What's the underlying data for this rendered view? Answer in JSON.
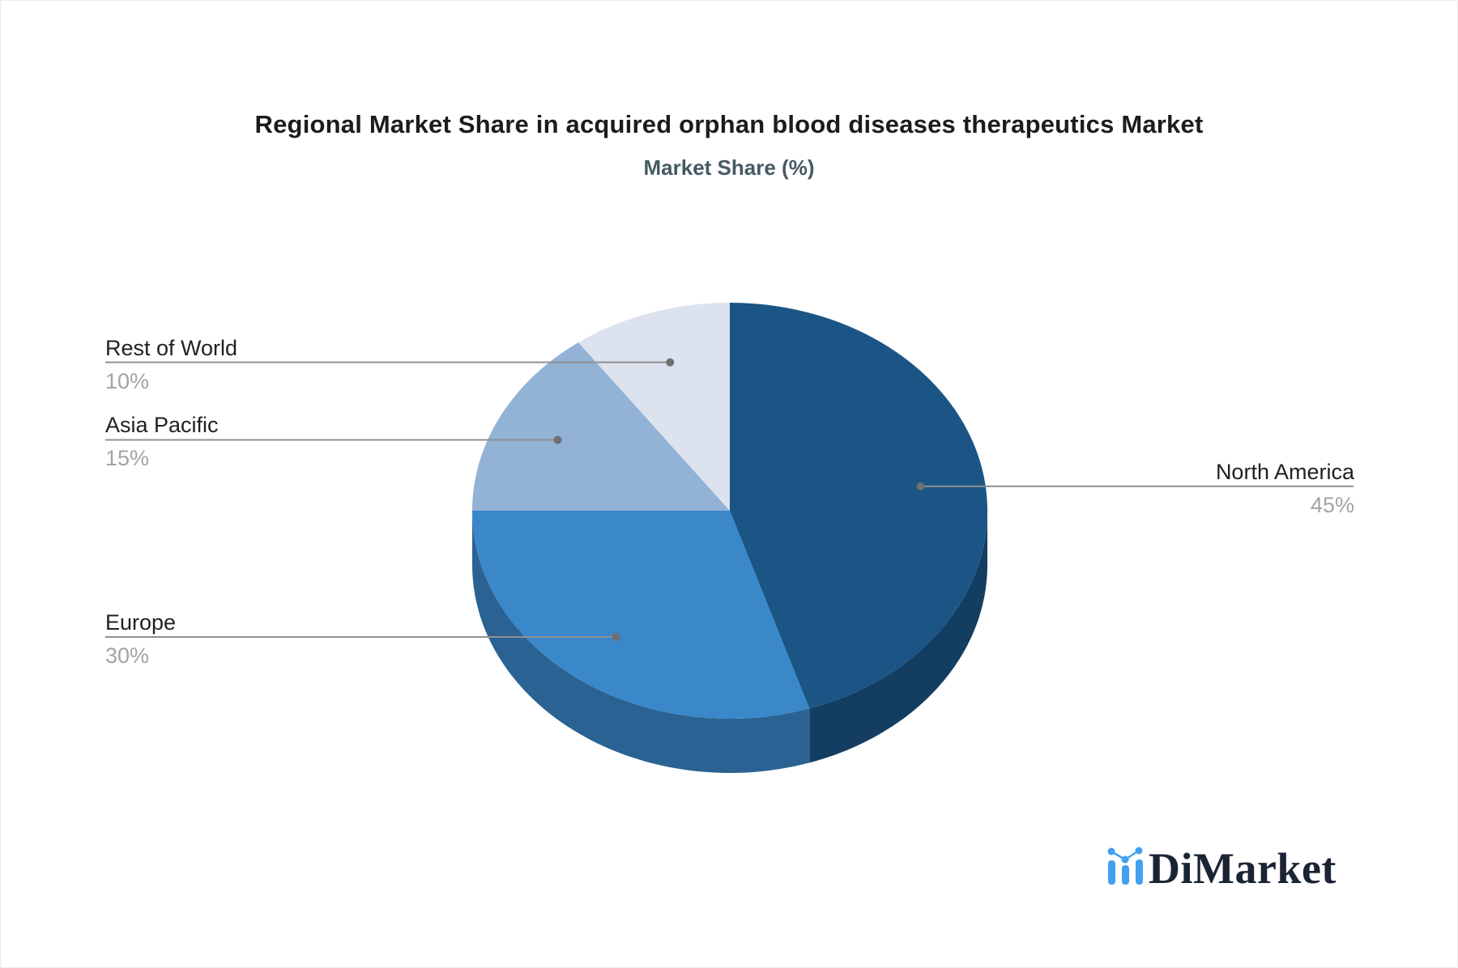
{
  "title": "Regional Market Share in acquired orphan blood diseases therapeutics Market",
  "subtitle": "Market Share (%)",
  "chart_data": {
    "type": "pie",
    "title": "Regional Market Share in acquired orphan blood diseases therapeutics Market",
    "subtitle": "Market Share (%)",
    "unit": "%",
    "direction": "clockwise",
    "start_angle_deg": 0,
    "effect": "3d-depth",
    "legend_position": "callout-labels",
    "categories": [
      "North America",
      "Europe",
      "Asia Pacific",
      "Rest of World"
    ],
    "values": [
      45,
      30,
      15,
      10
    ],
    "value_labels": [
      "45%",
      "30%",
      "15%",
      "10%"
    ],
    "colors": [
      "#1a5586",
      "#3a87c9",
      "#92b2d6",
      "#dce3ee"
    ],
    "leader_line_color": "#909090",
    "leader_dot_color": "#6f6f6f"
  },
  "watermark": {
    "brand": "DiMarket",
    "icon": "mini-bar-chart-logo-icon",
    "icon_color": "#42a0f0",
    "text_color": "#1b2434"
  }
}
